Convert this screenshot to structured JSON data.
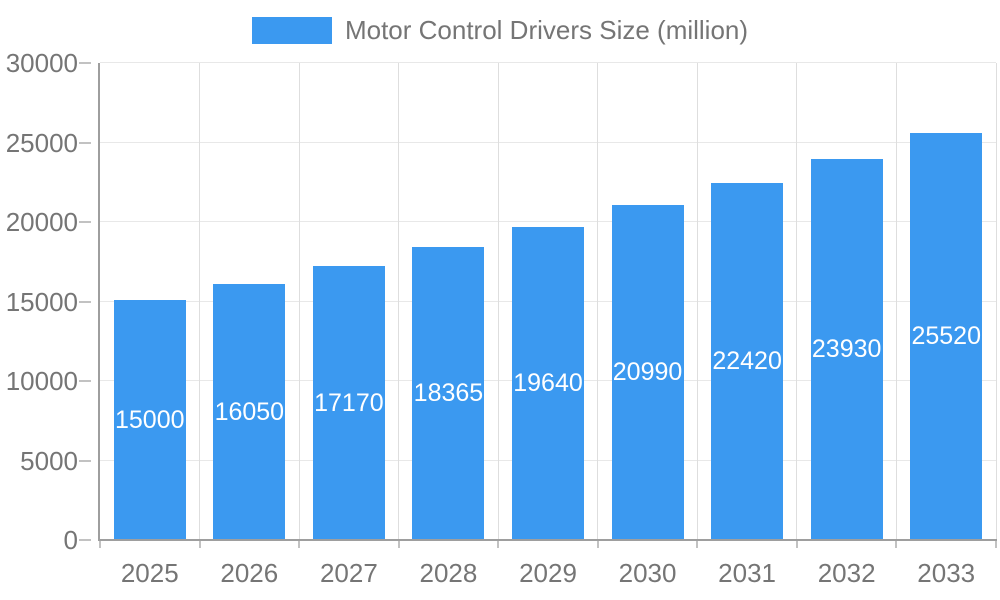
{
  "legend": {
    "label": "Motor Control Drivers Size (million)"
  },
  "colors": {
    "bar": "#3B99F0",
    "axis_text": "#757575",
    "bar_label_text": "#FFFFFF",
    "axis_line": "#9E9E9E",
    "grid_horizontal": "#E8E8E8",
    "grid_vertical": "#DEDEDE",
    "tick": "#C2C2C2",
    "background": "#FFFFFF"
  },
  "chart_data": {
    "type": "bar",
    "title": "Motor Control Drivers Size (million)",
    "categories": [
      "2025",
      "2026",
      "2027",
      "2028",
      "2029",
      "2030",
      "2031",
      "2032",
      "2033"
    ],
    "values": [
      15000,
      16050,
      17170,
      18365,
      19640,
      20990,
      22420,
      23930,
      25520
    ],
    "series_name": "Motor Control Drivers Size (million)",
    "xlabel": "",
    "ylabel": "",
    "ylim": [
      0,
      30000
    ],
    "yticks": [
      0,
      5000,
      10000,
      15000,
      20000,
      25000,
      30000
    ],
    "grid": true,
    "legend_position": "top-center",
    "bar_value_labels": "inside-center-white"
  }
}
